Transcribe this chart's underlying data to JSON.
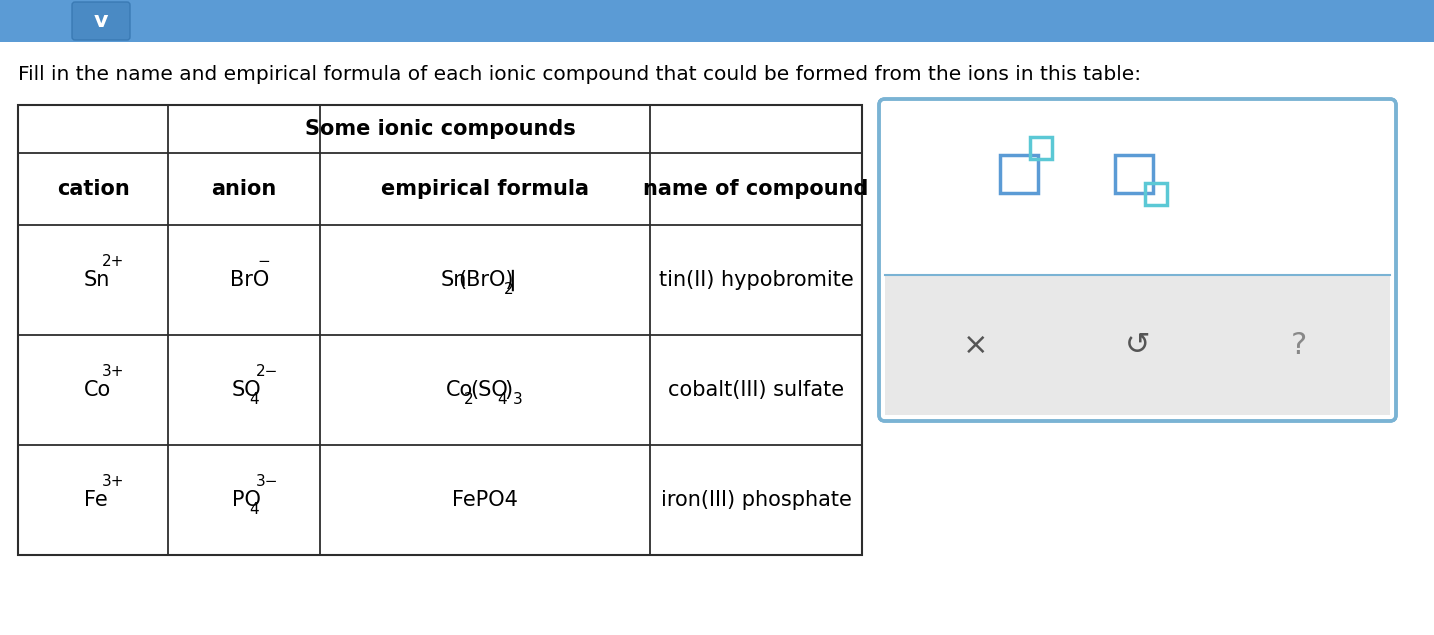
{
  "title_text": "Fill in the name and empirical formula of each ionic compound that could be formed from the ions in this table:",
  "table_title": "Some ionic compounds",
  "col_headers": [
    "cation",
    "anion",
    "empirical formula",
    "name of compound"
  ],
  "bg_color": "#ffffff",
  "table_border_color": "#2d2d2d",
  "top_bar_color": "#5b9bd5",
  "panel_border_color": "#7ab3d4",
  "panel_bg_top": "#ffffff",
  "panel_bg_bottom": "#e8e8e8",
  "icon_color": "#5b9bd5",
  "title_fontsize": 14.5,
  "table_title_fontsize": 15,
  "header_fontsize": 15,
  "cell_fontsize": 15,
  "cell_fontsize_sub": 11,
  "cell_fontsize_sup": 11,
  "rows": [
    {
      "cation_main": "Sn",
      "cation_sup": "2+",
      "anion_main": "BrO",
      "anion_sup": "−",
      "name_text": "tin(II) hypobromite"
    },
    {
      "cation_main": "Co",
      "cation_sup": "3+",
      "anion_main": "SO",
      "anion_sub": "4",
      "anion_sup": "2−",
      "name_text": "cobalt(III) sulfate"
    },
    {
      "cation_main": "Fe",
      "cation_sup": "3+",
      "anion_main": "PO",
      "anion_sub": "4",
      "anion_sup": "3−",
      "name_text": "iron(III) phosphate"
    }
  ]
}
